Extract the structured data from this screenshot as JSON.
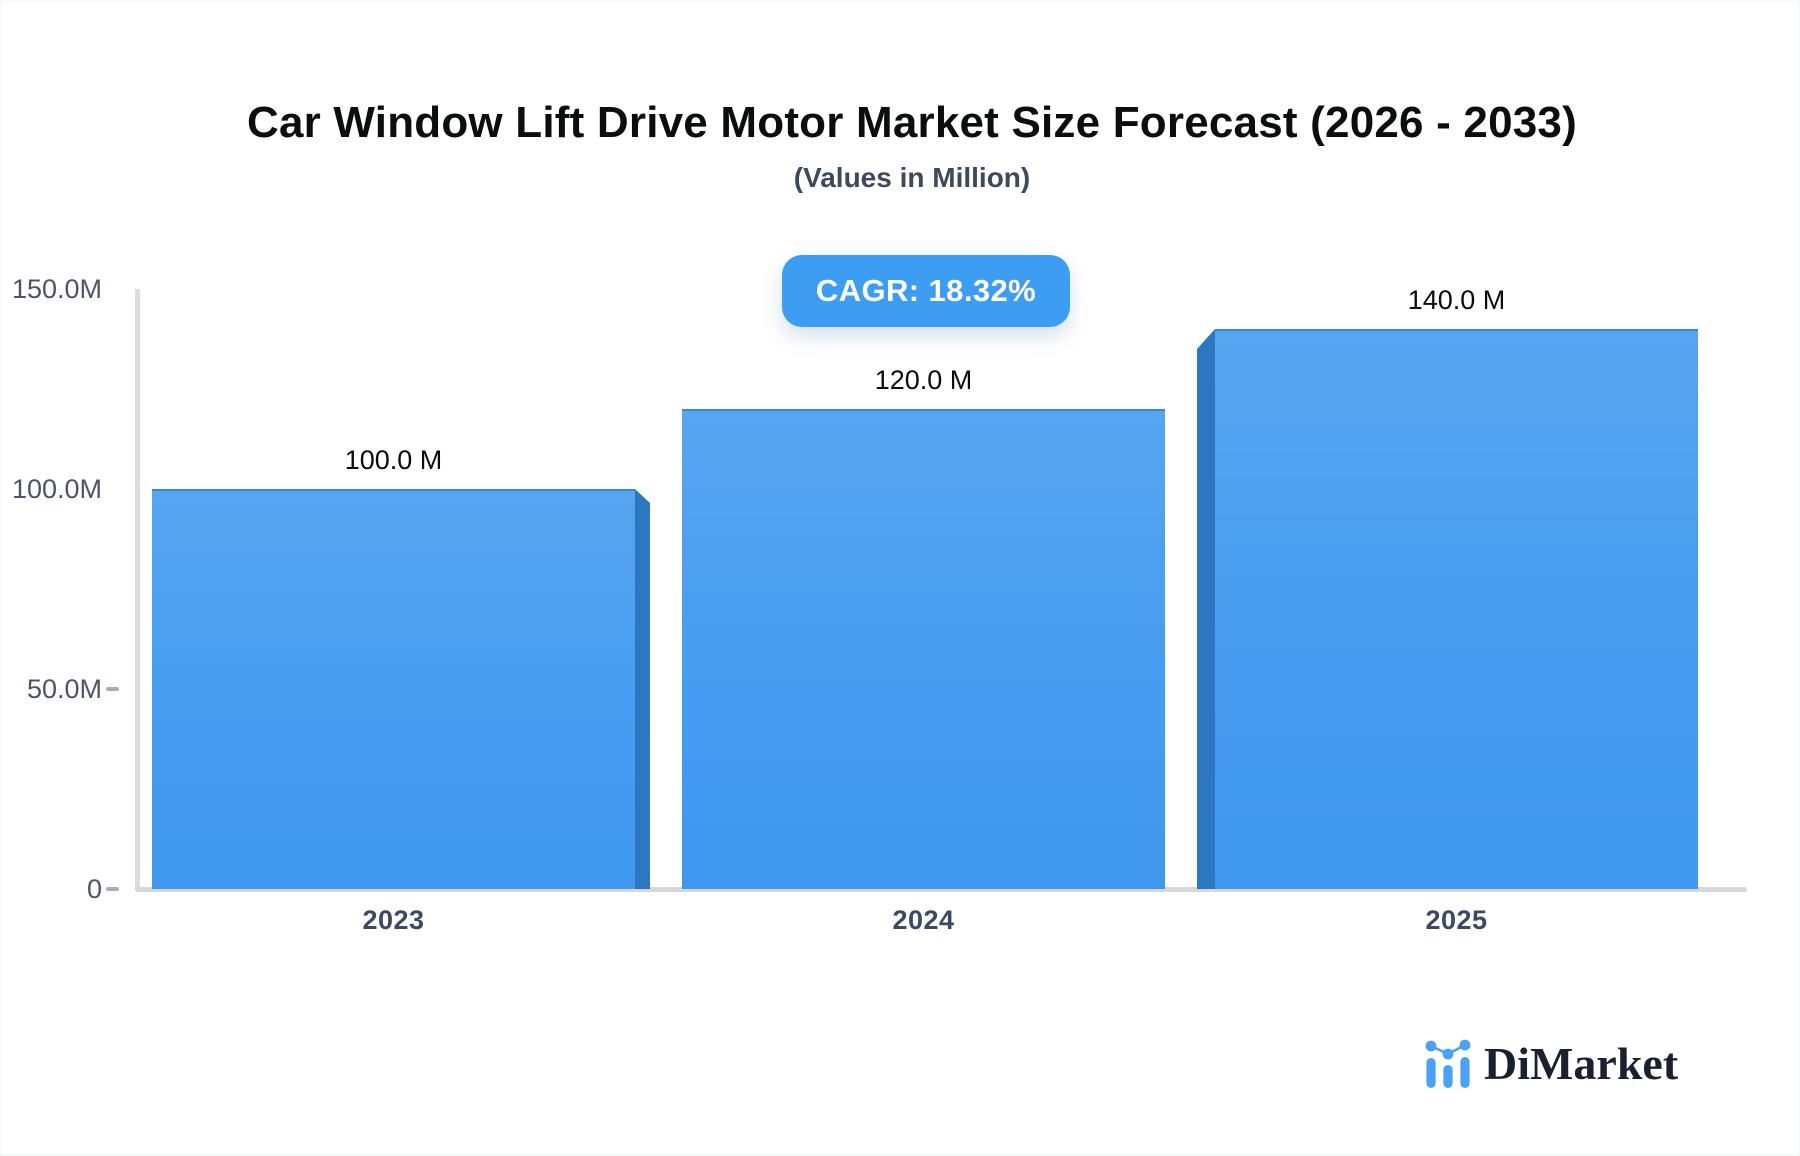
{
  "header": {
    "title": "Car Window Lift Drive Motor Market Size Forecast (2026 - 2033)",
    "subtitle": "(Values in Million)",
    "cagr_label": "CAGR: 18.32%"
  },
  "footer": {
    "brand": "DiMarket"
  },
  "colors": {
    "bar_face_top": "#57a5f0",
    "bar_face_bottom": "#3f97ef",
    "bar_side": "#2d76c0",
    "badge_blue": "#3d9df2",
    "axis_gray": "#d5d7da",
    "label_slate": "#4a5568",
    "brand_navy": "#17212f",
    "brand_blue": "#4ba1f4"
  },
  "chart_data": {
    "type": "bar",
    "title": "Car Window Lift Drive Motor Market Size Forecast (2026 - 2033)",
    "subtitle": "(Values in Million)",
    "cagr": "18.32%",
    "unit": "Million",
    "categories": [
      "2023",
      "2024",
      "2025"
    ],
    "values": [
      100,
      120,
      140
    ],
    "value_labels": [
      "100.0 M",
      "120.0 M",
      "140.0 M"
    ],
    "xlabel": "",
    "ylabel": "",
    "ylim": [
      0,
      150
    ],
    "yticks": [
      {
        "label": "150.0M",
        "value": 150
      },
      {
        "label": "100.0M",
        "value": 100
      },
      {
        "label": "50.0M",
        "value": 50
      },
      {
        "label": "0",
        "value": 0
      }
    ],
    "grid": false,
    "legend": false,
    "bar_style": "3d-extruded"
  }
}
